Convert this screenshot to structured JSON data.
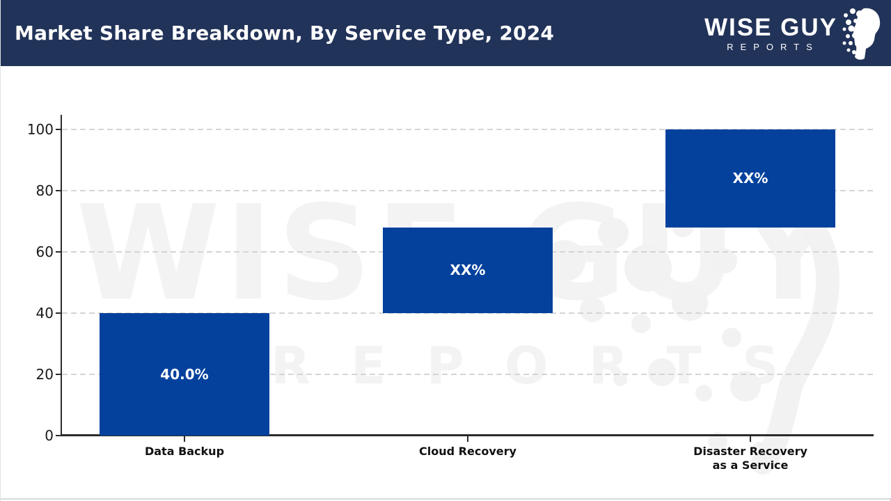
{
  "header": {
    "title": "Market Share Breakdown, By Service Type, 2024",
    "brand": {
      "name": "WISE GUY",
      "tagline": "REPORTS"
    }
  },
  "watermark": {
    "line1": "WISE GUY",
    "line2": "REPORTS"
  },
  "chart_data": {
    "type": "bar",
    "subtype": "floating-segment (waterfall-style market share breakdown)",
    "title": "Market Share Breakdown, By Service Type, 2024",
    "categories": [
      "Data Backup",
      "Cloud Recovery",
      "Disaster Recovery\nas a Service"
    ],
    "segments": [
      {
        "category": "Data Backup",
        "start": 0,
        "end": 40,
        "value": 40,
        "label": "40.0%"
      },
      {
        "category": "Cloud Recovery",
        "start": 40,
        "end": 68,
        "value": 28,
        "label": "XX%"
      },
      {
        "category": "Disaster Recovery as a Service",
        "start": 68,
        "end": 100,
        "value": 32,
        "label": "XX%"
      }
    ],
    "xlabel": "",
    "ylabel": "",
    "yticks": [
      0,
      20,
      40,
      60,
      80,
      100
    ],
    "ylim": [
      0,
      100
    ],
    "grid": "horizontal dashed",
    "legend": "none",
    "colors": {
      "bar": "#04419d",
      "bar_label": "#ffffff",
      "axis": "#2b2b2b",
      "tick_text": "#1a1a1a",
      "grid": "#d4d4d4",
      "header_bg": "#223359",
      "header_text": "#ffffff",
      "watermark": "#f3f3f3"
    }
  }
}
